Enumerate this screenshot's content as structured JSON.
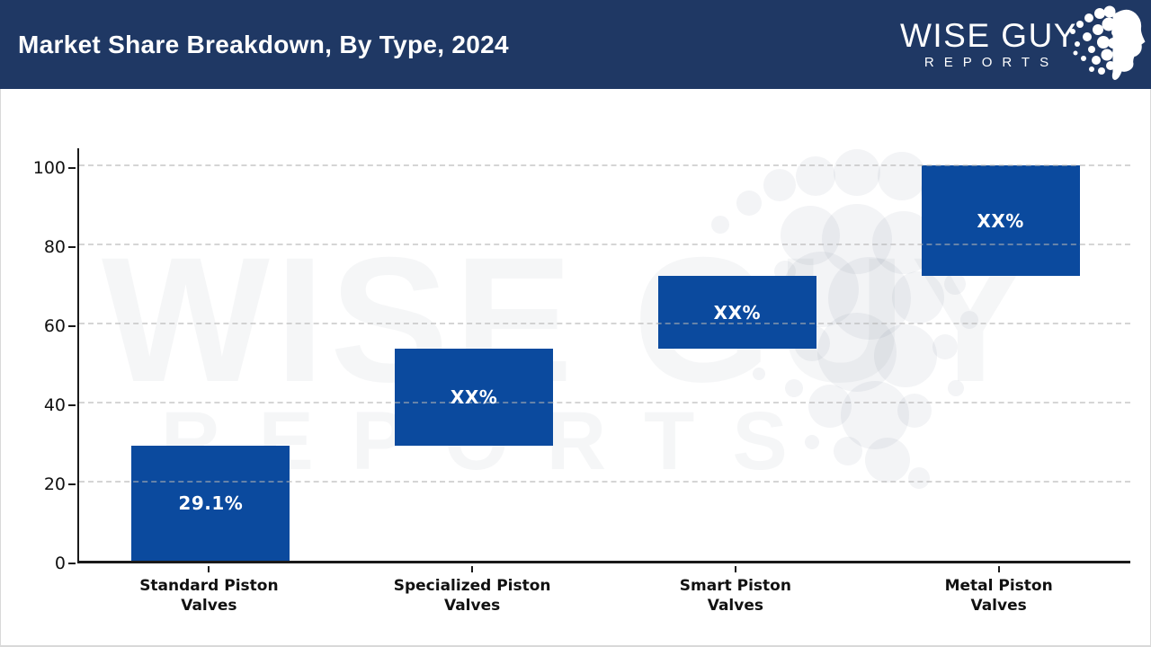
{
  "header": {
    "title": "Market Share Breakdown, By Type, 2024",
    "logo": {
      "line1": "WISE GUY",
      "line2": "REPORTS"
    }
  },
  "watermark": {
    "line1": "WISE GUY",
    "line2": "REPORTS"
  },
  "chart_data": {
    "type": "bar",
    "subtype": "floating-waterfall",
    "title": "Market Share Breakdown, By Type, 2024",
    "categories": [
      "Standard Piston Valves",
      "Specialized Piston Valves",
      "Smart Piston Valves",
      "Metal Piston Valves"
    ],
    "segments": [
      {
        "category": "Standard Piston Valves",
        "start": 0,
        "end": 29.1,
        "label": "29.1%"
      },
      {
        "category": "Specialized Piston Valves",
        "start": 29.1,
        "end": 53.6,
        "label": "XX%"
      },
      {
        "category": "Smart Piston Valves",
        "start": 53.6,
        "end": 72.0,
        "label": "XX%"
      },
      {
        "category": "Metal Piston Valves",
        "start": 72.0,
        "end": 100,
        "label": "XX%"
      }
    ],
    "ylim": [
      0,
      100
    ],
    "yticks": [
      0,
      20,
      40,
      60,
      80,
      100
    ],
    "xlabel": "",
    "ylabel": "",
    "grid": {
      "axis": "y",
      "style": "dashed",
      "on": true
    },
    "legend": false
  },
  "colors": {
    "header_bg": "#1f3864",
    "bar": "#0b4a9e",
    "bar_label": "#ffffff",
    "grid": "#d8d8d8",
    "axis": "#1a1a1a",
    "tick_text": "#111111"
  }
}
